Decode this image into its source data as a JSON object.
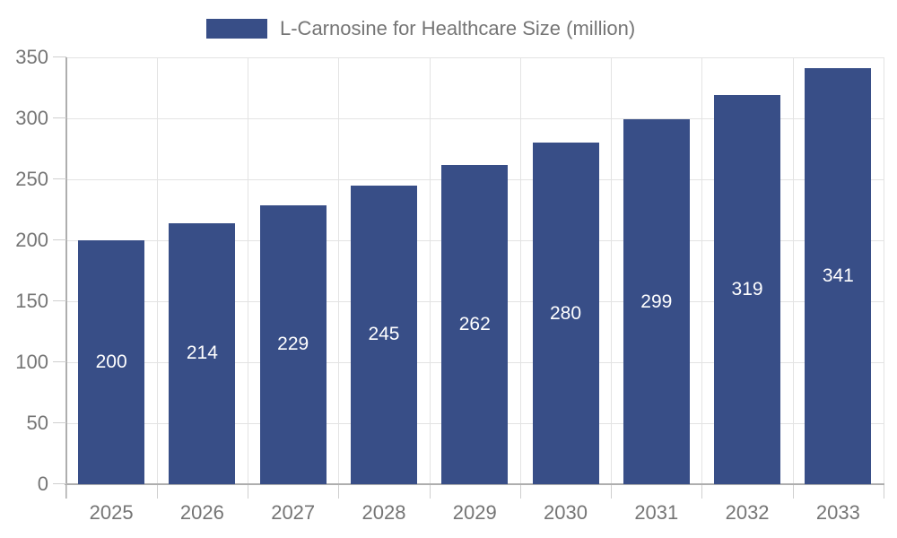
{
  "chart_data": {
    "type": "bar",
    "title": "L-Carnosine for Healthcare Size (million)",
    "categories": [
      "2025",
      "2026",
      "2027",
      "2028",
      "2029",
      "2030",
      "2031",
      "2032",
      "2033"
    ],
    "values": [
      200,
      214,
      229,
      245,
      262,
      280,
      299,
      319,
      341
    ],
    "xlabel": "",
    "ylabel": "",
    "ylim": [
      0,
      350
    ],
    "ytick_step": 50,
    "yticks": [
      0,
      50,
      100,
      150,
      200,
      250,
      300,
      350
    ],
    "grid": true,
    "legend_position": "top",
    "bar_color": "#384e87",
    "value_label_color": "#ffffff",
    "axis_text_color": "#757575",
    "grid_color": "#e3e3e3",
    "axis_line_color": "#aeaeae",
    "tick_color": "#cfcfcf"
  }
}
